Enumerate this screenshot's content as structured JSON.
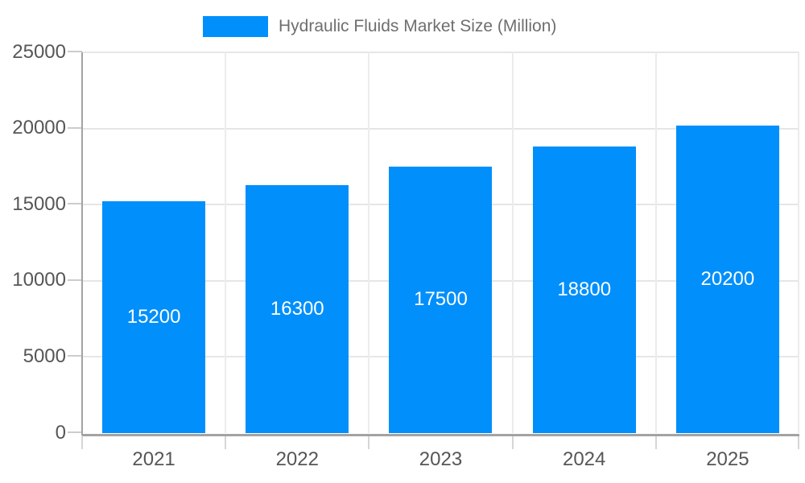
{
  "colors": {
    "bar": "#008FFB",
    "grid": "#e6e6e6",
    "vgrid": "#ececec",
    "axis": "#a3a3a3",
    "tick": "#cccccc",
    "tick2": "#d6d6d6",
    "tick_label": "#565656",
    "legend_text": "#6e6e6e",
    "value_label": "#ffffff",
    "background": "#ffffff"
  },
  "legend": {
    "position": "top",
    "items": [
      {
        "label": "Hydraulic Fluids Market Size (Million)",
        "color": "#008FFB"
      }
    ]
  },
  "chart_data": {
    "type": "bar",
    "title": "Hydraulic Fluids Market Size (Million)",
    "categories": [
      "2021",
      "2022",
      "2023",
      "2024",
      "2025"
    ],
    "values": [
      15200,
      16300,
      17500,
      18800,
      20200
    ],
    "bar_labels": [
      15200,
      16300,
      17500,
      18800,
      20200
    ],
    "xlabel": "",
    "ylabel": "",
    "ylim": [
      0,
      25000
    ],
    "yticks": [
      0,
      5000,
      10000,
      15000,
      20000,
      25000
    ],
    "grid": true,
    "legend_position": "top"
  }
}
